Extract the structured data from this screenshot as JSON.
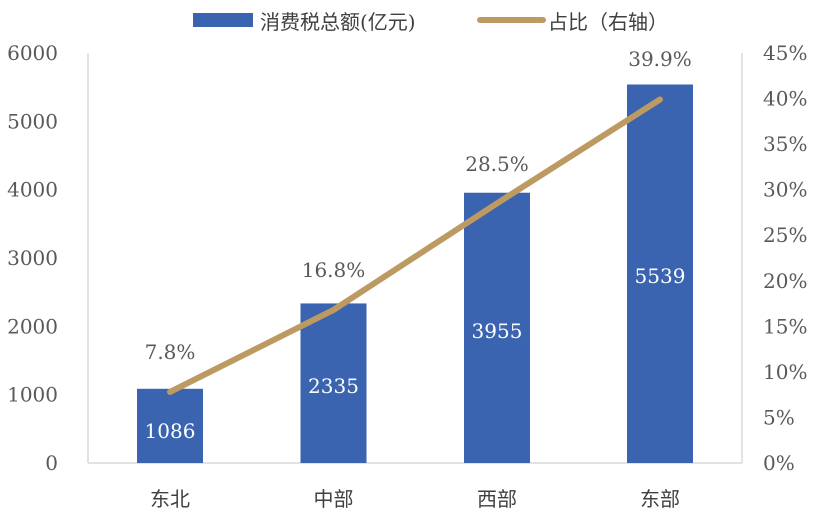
{
  "chart_data": {
    "type": "bar",
    "title": "",
    "xlabel": "",
    "ylabel": "",
    "categories": [
      "东北",
      "中部",
      "西部",
      "东部"
    ],
    "series": [
      {
        "name": "消费税总额(亿元)",
        "kind": "bar",
        "axis": "left",
        "color": "#3A63B0",
        "values": [
          1086,
          2335,
          3955,
          5539
        ],
        "labels": [
          "1086",
          "2335",
          "3955",
          "5539"
        ]
      },
      {
        "name": "占比（右轴）",
        "kind": "line",
        "axis": "right",
        "color": "#BD9A62",
        "values": [
          7.8,
          16.8,
          28.5,
          39.9
        ],
        "labels": [
          "7.8%",
          "16.8%",
          "28.5%",
          "39.9%"
        ]
      }
    ],
    "ylim": [
      0,
      6000
    ],
    "yticks": [
      "0",
      "1000",
      "2000",
      "3000",
      "4000",
      "5000",
      "6000"
    ],
    "y2lim": [
      0,
      45
    ],
    "y2ticks": [
      "0%",
      "5%",
      "10%",
      "15%",
      "20%",
      "25%",
      "30%",
      "35%",
      "40%",
      "45%"
    ],
    "grid": false,
    "legend_position": "top"
  },
  "legend": {
    "bar_label": "消费税总额(亿元)",
    "line_label": "占比（右轴）"
  }
}
